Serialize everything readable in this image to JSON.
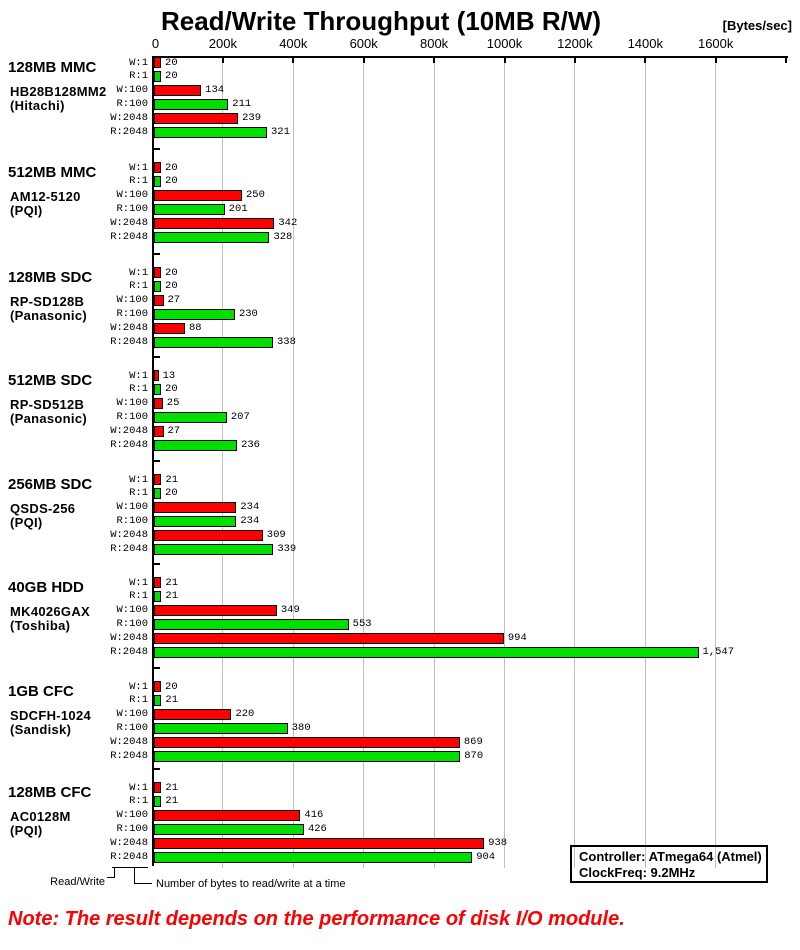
{
  "title": "Read/Write Throughput (10MB R/W)",
  "unit_label": "[Bytes/sec]",
  "chart_data": {
    "type": "bar",
    "orientation": "horizontal",
    "value_unit": "kBytes/sec",
    "axis_range_k": [
      0,
      1800
    ],
    "tick_labels": [
      "0",
      "200k",
      "400k",
      "600k",
      "800k",
      "1000k",
      "1200k",
      "1400k",
      "1600k"
    ],
    "row_labels": [
      "W:1",
      "R:1",
      "W:100",
      "R:100",
      "W:2048",
      "R:2048"
    ],
    "bar_colors": {
      "write": "#ff0000",
      "read": "#00e000"
    },
    "grid_color": "#c0c0c0",
    "groups": [
      {
        "name": "128MB MMC",
        "model": "HB28B128MM2",
        "maker": "(Hitachi)",
        "values": [
          20,
          20,
          134,
          211,
          239,
          321
        ]
      },
      {
        "name": "512MB MMC",
        "model": "AM12-5120",
        "maker": "(PQI)",
        "values": [
          20,
          20,
          250,
          201,
          342,
          328
        ]
      },
      {
        "name": "128MB SDC",
        "model": "RP-SD128B",
        "maker": "(Panasonic)",
        "values": [
          20,
          20,
          27,
          230,
          88,
          338
        ]
      },
      {
        "name": "512MB SDC",
        "model": "RP-SD512B",
        "maker": "(Panasonic)",
        "values": [
          13,
          20,
          25,
          207,
          27,
          236
        ]
      },
      {
        "name": "256MB SDC",
        "model": "QSDS-256",
        "maker": "(PQI)",
        "values": [
          21,
          20,
          234,
          234,
          309,
          339
        ]
      },
      {
        "name": "40GB HDD",
        "model": "MK4026GAX",
        "maker": "(Toshiba)",
        "values": [
          21,
          21,
          349,
          553,
          994,
          1547
        ]
      },
      {
        "name": "1GB CFC",
        "model": "SDCFH-1024",
        "maker": "(Sandisk)",
        "values": [
          20,
          21,
          220,
          380,
          869,
          870
        ]
      },
      {
        "name": "128MB CFC",
        "model": "AC0128M",
        "maker": "(PQI)",
        "values": [
          21,
          21,
          416,
          426,
          938,
          904
        ]
      }
    ]
  },
  "annotations": {
    "read_write": "Read/Write",
    "bytes_at_a_time": "Number of bytes to read/write at a time"
  },
  "legend": {
    "line1": "Controller: ATmega64 (Atmel)",
    "line2": "ClockFreq: 9.2MHz"
  },
  "note": "Note: The result depends on the performance of disk I/O module."
}
